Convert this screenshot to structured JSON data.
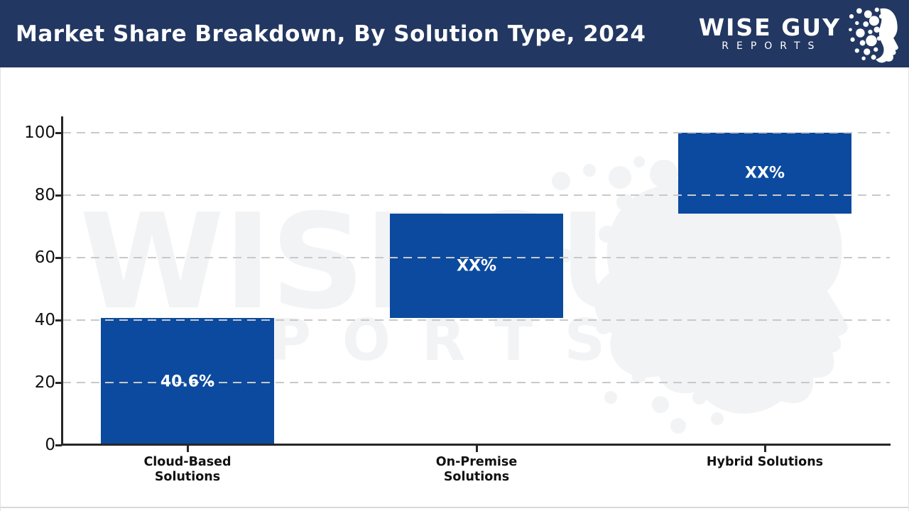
{
  "header": {
    "title": "Market Share Breakdown, By Solution Type, 2024",
    "logo": {
      "line1": "WISE GUY",
      "line2": "REPORTS"
    }
  },
  "watermark": {
    "line1": "WISEGUY",
    "line2": "REPORTS"
  },
  "chart_data": {
    "type": "bar",
    "subtype": "stacked-waterfall-segments",
    "title": "Market Share Breakdown, By Solution Type, 2024",
    "categories": [
      [
        "Cloud-Based",
        "Solutions"
      ],
      [
        "On-Premise",
        "Solutions"
      ],
      [
        "Hybrid Solutions"
      ]
    ],
    "segments": [
      {
        "category": "Cloud-Based Solutions",
        "label": "40.6%",
        "start": 0,
        "end": 40.6
      },
      {
        "category": "On-Premise Solutions",
        "label": "XX%",
        "start": 40.6,
        "end": 74
      },
      {
        "category": "Hybrid Solutions",
        "label": "XX%",
        "start": 74,
        "end": 100
      }
    ],
    "bar_color": "#0b4a9f",
    "ylim": [
      0,
      100
    ],
    "yticks": [
      0,
      20,
      40,
      60,
      80,
      100
    ],
    "xlabel": "",
    "ylabel": "",
    "grid": "dashed horizontal gridlines at yticks, drawn over bars",
    "legend": "none"
  }
}
